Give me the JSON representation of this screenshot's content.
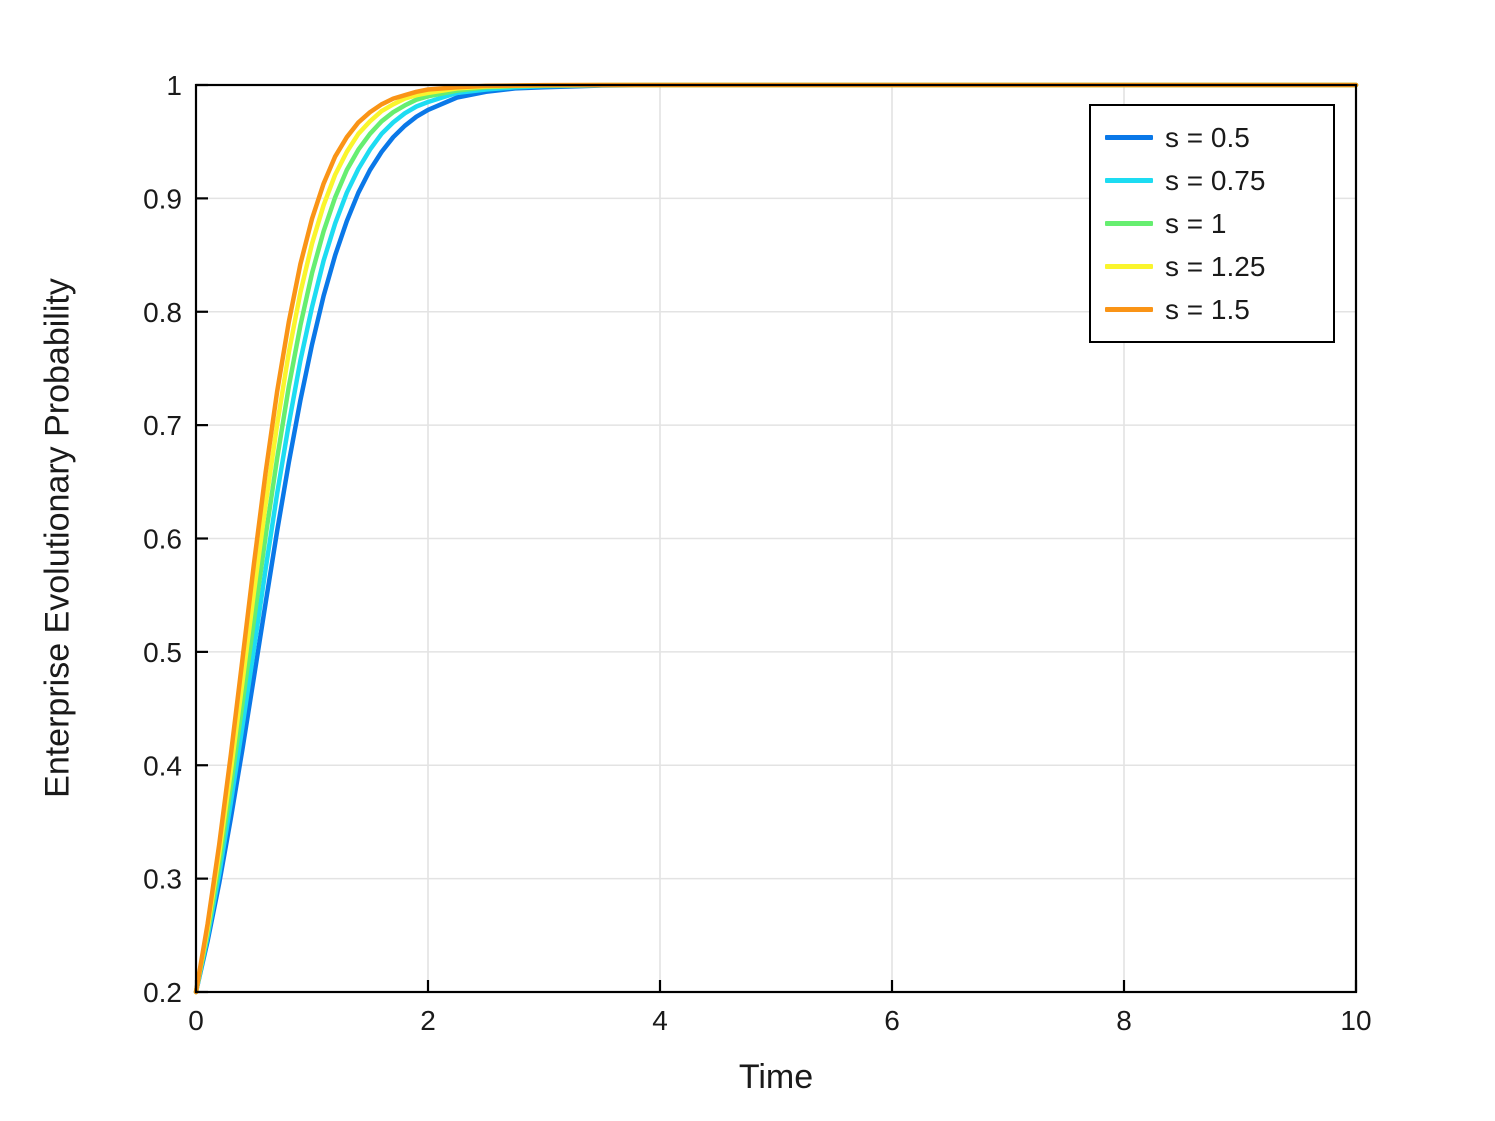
{
  "figure": {
    "background": "#ffffff",
    "text_color": "#1a1a1a",
    "grid_color": "#e3e3e3",
    "axis_box_color": "#000000"
  },
  "axes": {
    "x_ticks": [
      0,
      2,
      4,
      6,
      8,
      10
    ],
    "x_tick_labels": [
      "0",
      "2",
      "4",
      "6",
      "8",
      "10"
    ],
    "y_ticks": [
      0.2,
      0.3,
      0.4,
      0.5,
      0.6,
      0.7,
      0.8,
      0.9,
      1
    ],
    "y_tick_labels": [
      "0.2",
      "0.3",
      "0.4",
      "0.5",
      "0.6",
      "0.7",
      "0.8",
      "0.9",
      "1"
    ]
  },
  "chart_data": {
    "type": "line",
    "title": "",
    "xlabel": "Time",
    "ylabel": "Enterprise Evolutionary Probability",
    "xlim": [
      0,
      10
    ],
    "ylim": [
      0.2,
      1
    ],
    "grid": true,
    "legend_position": "top-right",
    "x": [
      0,
      0.1,
      0.2,
      0.3,
      0.4,
      0.5,
      0.6,
      0.7,
      0.8,
      0.9,
      1,
      1.1,
      1.2,
      1.3,
      1.4,
      1.5,
      1.6,
      1.7,
      1.8,
      1.9,
      2,
      2.25,
      2.5,
      2.75,
      3,
      3.5,
      4,
      5,
      6,
      7,
      8,
      9,
      10
    ],
    "series": [
      {
        "name": "s = 0.5",
        "color": "#0a78e8",
        "values": [
          0.2,
          0.245,
          0.296,
          0.353,
          0.414,
          0.478,
          0.543,
          0.607,
          0.667,
          0.722,
          0.771,
          0.814,
          0.85,
          0.88,
          0.905,
          0.925,
          0.941,
          0.954,
          0.964,
          0.972,
          0.978,
          0.989,
          0.994,
          0.997,
          0.998,
          0.9996,
          0.9999,
          1,
          1,
          1,
          1,
          1,
          1
        ]
      },
      {
        "name": "s = 0.75",
        "color": "#1ddcf2",
        "values": [
          0.2,
          0.249,
          0.304,
          0.367,
          0.434,
          0.503,
          0.573,
          0.64,
          0.701,
          0.757,
          0.804,
          0.845,
          0.878,
          0.905,
          0.926,
          0.943,
          0.957,
          0.967,
          0.975,
          0.981,
          0.985,
          0.993,
          0.996,
          0.998,
          0.999,
          0.9998,
          1,
          1,
          1,
          1,
          1,
          1,
          1
        ]
      },
      {
        "name": "s = 1",
        "color": "#66ee70",
        "values": [
          0.2,
          0.252,
          0.313,
          0.381,
          0.454,
          0.528,
          0.602,
          0.671,
          0.734,
          0.788,
          0.834,
          0.871,
          0.901,
          0.925,
          0.943,
          0.957,
          0.968,
          0.976,
          0.982,
          0.987,
          0.99,
          0.995,
          0.998,
          0.999,
          0.9995,
          0.9999,
          1,
          1,
          1,
          1,
          1,
          1,
          1
        ]
      },
      {
        "name": "s = 1.25",
        "color": "#faf52d",
        "values": [
          0.2,
          0.256,
          0.322,
          0.395,
          0.473,
          0.553,
          0.63,
          0.701,
          0.764,
          0.817,
          0.86,
          0.894,
          0.921,
          0.941,
          0.957,
          0.968,
          0.977,
          0.983,
          0.988,
          0.991,
          0.993,
          0.997,
          0.9987,
          0.9994,
          0.9997,
          1,
          1,
          1,
          1,
          1,
          1,
          1,
          1
        ]
      },
      {
        "name": "s = 1.5",
        "color": "#fa9416",
        "values": [
          0.2,
          0.26,
          0.33,
          0.409,
          0.493,
          0.578,
          0.658,
          0.73,
          0.791,
          0.842,
          0.882,
          0.913,
          0.937,
          0.954,
          0.967,
          0.976,
          0.983,
          0.988,
          0.991,
          0.994,
          0.996,
          0.998,
          0.9992,
          0.9996,
          0.9999,
          1,
          1,
          1,
          1,
          1,
          1,
          1,
          1
        ]
      }
    ]
  }
}
